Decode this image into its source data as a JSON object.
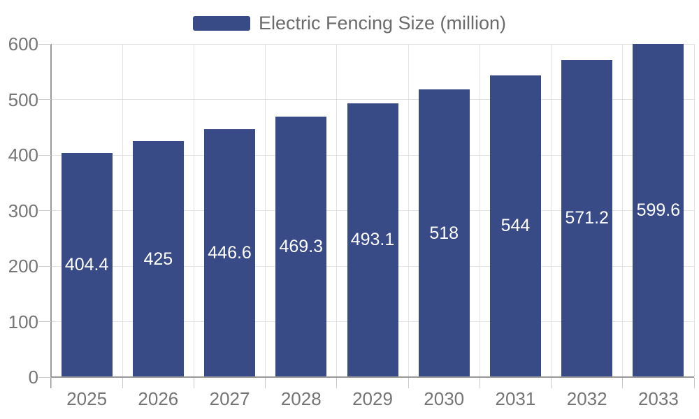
{
  "chart_data": {
    "type": "bar",
    "title": "Electric Fencing Size (million)",
    "categories": [
      "2025",
      "2026",
      "2027",
      "2028",
      "2029",
      "2030",
      "2031",
      "2032",
      "2033"
    ],
    "values": [
      404.4,
      425,
      446.6,
      469.3,
      493.1,
      518,
      544,
      571.2,
      599.6
    ],
    "xlabel": "",
    "ylabel": "",
    "ylim": [
      0,
      600
    ],
    "yticks": [
      0,
      100,
      200,
      300,
      400,
      500,
      600
    ],
    "grid": true,
    "legend": {
      "label": "Electric Fencing Size (million)",
      "position": "top"
    },
    "colors": {
      "bar": "#394B87",
      "bar_label": "#ffffff",
      "grid_line": "#e3e3e3",
      "axis_line": "#999999",
      "tick_line": "#cccccc",
      "axis_label": "#757575",
      "legend_text": "#6b6b6b",
      "background": "#ffffff"
    }
  }
}
